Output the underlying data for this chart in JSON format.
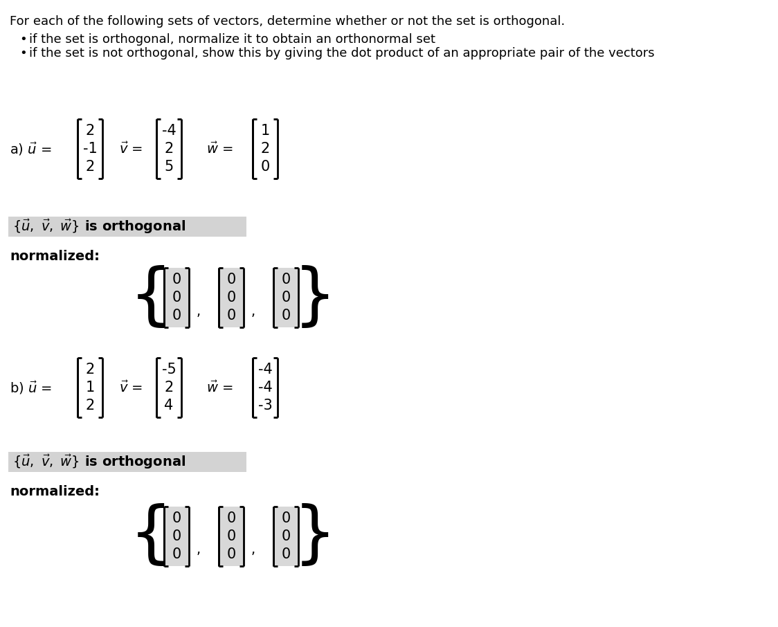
{
  "title_line": "For each of the following sets of vectors, determine whether or not the set is orthogonal.",
  "bullet1": "if the set is orthogonal, normalize it to obtain an orthonormal set",
  "bullet2": "if the set is not orthogonal, show this by giving the dot product of an appropriate pair of the vectors",
  "background_color": "#ffffff",
  "text_color": "#000000",
  "highlight_color": "#d3d3d3",
  "vec_bg_color": "#d8d8d8",
  "part_a": {
    "u": [
      "2",
      "-1",
      "2"
    ],
    "v": [
      "-4",
      "2",
      "5"
    ],
    "w": [
      "1",
      "2",
      "0"
    ]
  },
  "part_b": {
    "u": [
      "2",
      "1",
      "2"
    ],
    "v": [
      "-5",
      "2",
      "4"
    ],
    "w": [
      "-4",
      "-4",
      "-3"
    ]
  },
  "norm_vals": [
    "0",
    "0",
    "0"
  ]
}
